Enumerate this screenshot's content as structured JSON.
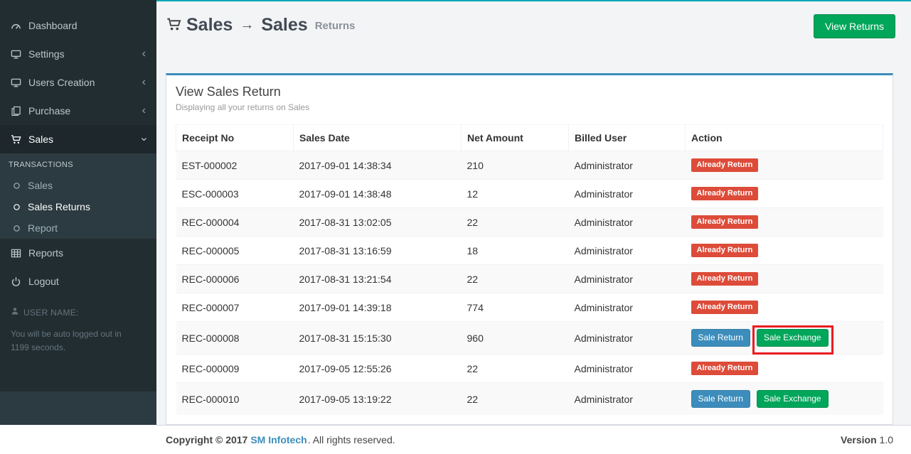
{
  "colors": {
    "top_strip": "#00a7b5",
    "accent_blue": "#3c8dbc",
    "success_green": "#00a65a",
    "danger_red": "#dd4b39",
    "annotation_red": "#ea1b22",
    "sidebar_bg": "#222d32"
  },
  "sidebar": {
    "menu": [
      {
        "label": "Dashboard"
      },
      {
        "label": "Settings"
      },
      {
        "label": "Users Creation"
      },
      {
        "label": "Purchase"
      },
      {
        "label": "Sales"
      }
    ],
    "submenu_header": "TRANSACTIONS",
    "submenu": [
      {
        "label": "Sales"
      },
      {
        "label": "Sales Returns"
      },
      {
        "label": "Report"
      }
    ],
    "extra": [
      {
        "label": "Reports"
      },
      {
        "label": "Logout"
      }
    ],
    "user_label": "USER NAME:",
    "auto_logout_notice": "You will be auto logged out in 1199 seconds."
  },
  "header": {
    "breadcrumb_primary": "Sales",
    "breadcrumb_arrow": "→",
    "breadcrumb_secondary": "Sales",
    "breadcrumb_sub": "Returns",
    "action_button": "View Returns"
  },
  "panel": {
    "title": "View Sales Return",
    "subtitle": "Displaying all your returns on Sales",
    "table": {
      "columns": [
        "Receipt No",
        "Sales Date",
        "Net Amount",
        "Billed User",
        "Action"
      ],
      "rows": [
        {
          "receipt_no": "EST-000002",
          "sales_date": "2017-09-01 14:38:34",
          "net_amount": "210",
          "billed_user": "Administrator",
          "actions": [
            {
              "label": "Already Return",
              "style": "danger"
            }
          ]
        },
        {
          "receipt_no": "ESC-000003",
          "sales_date": "2017-09-01 14:38:48",
          "net_amount": "12",
          "billed_user": "Administrator",
          "actions": [
            {
              "label": "Already Return",
              "style": "danger"
            }
          ]
        },
        {
          "receipt_no": "REC-000004",
          "sales_date": "2017-08-31 13:02:05",
          "net_amount": "22",
          "billed_user": "Administrator",
          "actions": [
            {
              "label": "Already Return",
              "style": "danger"
            }
          ]
        },
        {
          "receipt_no": "REC-000005",
          "sales_date": "2017-08-31 13:16:59",
          "net_amount": "18",
          "billed_user": "Administrator",
          "actions": [
            {
              "label": "Already Return",
              "style": "danger"
            }
          ]
        },
        {
          "receipt_no": "REC-000006",
          "sales_date": "2017-08-31 13:21:54",
          "net_amount": "22",
          "billed_user": "Administrator",
          "actions": [
            {
              "label": "Already Return",
              "style": "danger"
            }
          ]
        },
        {
          "receipt_no": "REC-000007",
          "sales_date": "2017-09-01 14:39:18",
          "net_amount": "774",
          "billed_user": "Administrator",
          "actions": [
            {
              "label": "Already Return",
              "style": "danger"
            }
          ]
        },
        {
          "receipt_no": "REC-000008",
          "sales_date": "2017-08-31 15:15:30",
          "net_amount": "960",
          "billed_user": "Administrator",
          "actions": [
            {
              "label": "Sale Return",
              "style": "primary"
            },
            {
              "label": "Sale Exchange",
              "style": "success",
              "annotated": true
            }
          ]
        },
        {
          "receipt_no": "REC-000009",
          "sales_date": "2017-09-05 12:55:26",
          "net_amount": "22",
          "billed_user": "Administrator",
          "actions": [
            {
              "label": "Already Return",
              "style": "danger"
            }
          ]
        },
        {
          "receipt_no": "REC-000010",
          "sales_date": "2017-09-05 13:19:22",
          "net_amount": "22",
          "billed_user": "Administrator",
          "actions": [
            {
              "label": "Sale Return",
              "style": "primary"
            },
            {
              "label": "Sale Exchange",
              "style": "success"
            }
          ]
        }
      ]
    }
  },
  "footer": {
    "copyright_bold": "Copyright © 2017",
    "company_link": "SM Infotech",
    "copyright_rest": ". All rights reserved.",
    "version_label": "Version",
    "version_number": "1.0"
  }
}
